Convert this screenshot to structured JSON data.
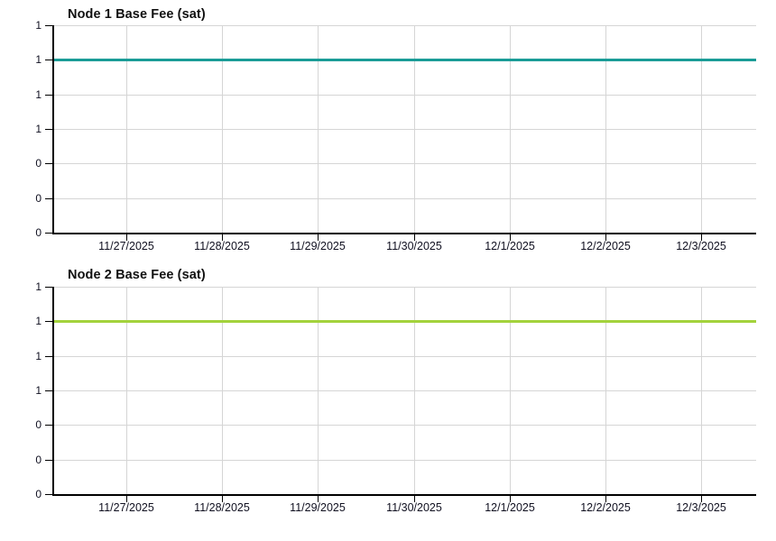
{
  "page": {
    "background": "#ffffff",
    "grid_color": "#d5d5d5",
    "axis_color": "#000000",
    "text_color": "#101020"
  },
  "chart_data": [
    {
      "type": "line",
      "title": "Node 1 Base Fee (sat)",
      "xlabel": "",
      "ylabel": "",
      "x": [
        "11/27/2025",
        "11/28/2025",
        "11/29/2025",
        "11/30/2025",
        "12/1/2025",
        "12/2/2025",
        "12/3/2025"
      ],
      "series": [
        {
          "name": "Node 1 base fee",
          "values": [
            1,
            1,
            1,
            1,
            1,
            1,
            1
          ],
          "color": "#1a9c97"
        }
      ],
      "constant_value": 1,
      "y_axis": {
        "min": 0,
        "max": 1.2,
        "tick_step": 0.2,
        "tick_labels_top_to_bottom": [
          "1",
          "1",
          "1",
          "1",
          "0",
          "0",
          "0"
        ]
      },
      "grid": true,
      "legend": "none"
    },
    {
      "type": "line",
      "title": "Node 2 Base Fee (sat)",
      "xlabel": "",
      "ylabel": "",
      "x": [
        "11/27/2025",
        "11/28/2025",
        "11/29/2025",
        "11/30/2025",
        "12/1/2025",
        "12/2/2025",
        "12/3/2025"
      ],
      "series": [
        {
          "name": "Node 2 base fee",
          "values": [
            1,
            1,
            1,
            1,
            1,
            1,
            1
          ],
          "color": "#a3d23c"
        }
      ],
      "constant_value": 1,
      "y_axis": {
        "min": 0,
        "max": 1.2,
        "tick_step": 0.2,
        "tick_labels_top_to_bottom": [
          "1",
          "1",
          "1",
          "1",
          "0",
          "0",
          "0"
        ]
      },
      "grid": true,
      "legend": "none"
    }
  ]
}
